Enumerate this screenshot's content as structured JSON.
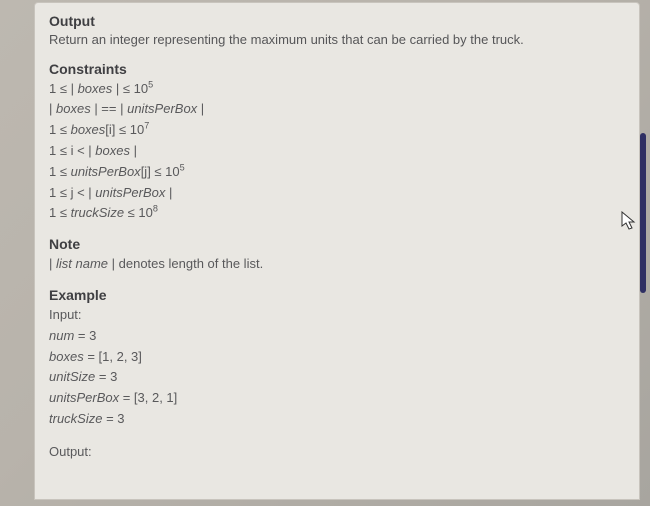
{
  "output": {
    "heading": "Output",
    "text": "Return an integer representing the maximum units that can be carried by the truck."
  },
  "constraints": {
    "heading": "Constraints",
    "lines": [
      {
        "pre": "1 ≤ | ",
        "var": "boxes",
        "post": " | ≤ 10",
        "exp": "5"
      },
      {
        "pre": "| ",
        "var": "boxes",
        "mid": " | == | ",
        "var2": "unitsPerBox",
        "post": " |"
      },
      {
        "pre": "1 ≤ ",
        "var": "boxes",
        "idx": "[i]",
        "post": " ≤ 10",
        "exp": "7"
      },
      {
        "pre": "1 ≤ i < | ",
        "var": "boxes",
        "post": " |"
      },
      {
        "pre": "1 ≤ ",
        "var": "unitsPerBox",
        "idx": "[j]",
        "post": " ≤ 10",
        "exp": "5"
      },
      {
        "pre": "1 ≤ j < | ",
        "var": "unitsPerBox",
        "post": " |"
      },
      {
        "pre": "1 ≤ ",
        "var": "truckSize",
        "post": " ≤ 10",
        "exp": "8"
      }
    ]
  },
  "note": {
    "heading": "Note",
    "pre": "| ",
    "var": "list name",
    "post": " | denotes length of the list."
  },
  "example": {
    "heading": "Example",
    "input_label": "Input:",
    "lines": [
      {
        "var": "num",
        "val": " = 3"
      },
      {
        "var": "boxes",
        "val": " = [1, 2, 3]"
      },
      {
        "var": "unitSize",
        "val": " = 3"
      },
      {
        "var": "unitsPerBox",
        "val": " = [3, 2, 1]"
      },
      {
        "var": "truckSize",
        "val": " = 3"
      }
    ],
    "output_label": "Output:"
  },
  "colors": {
    "scrollbar": "#2f2f63",
    "panel_bg": "#e9e7e2",
    "text": "#565658",
    "heading": "#3f3f42"
  }
}
